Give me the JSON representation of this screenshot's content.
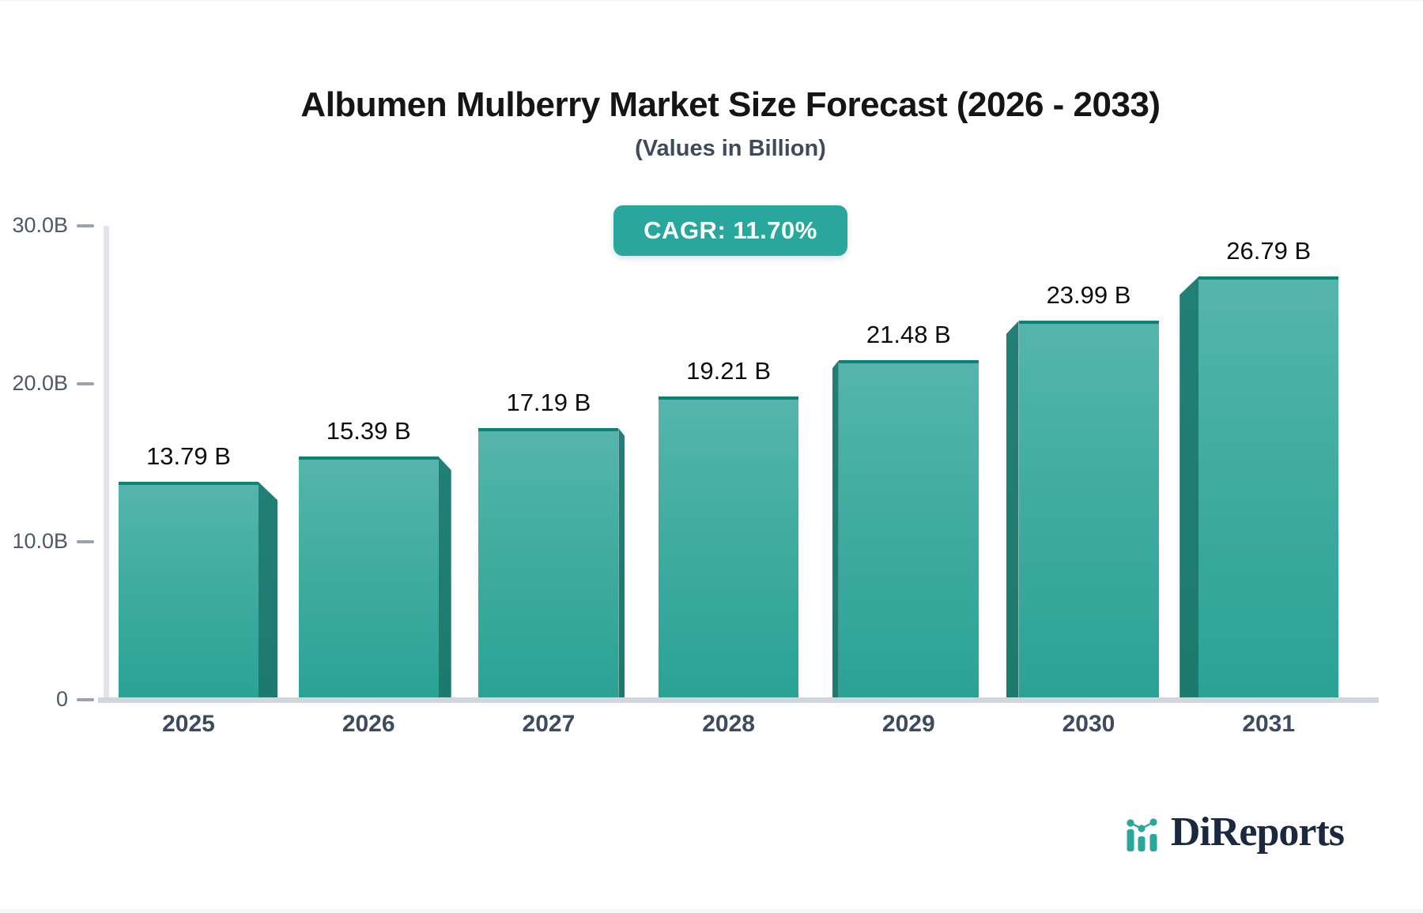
{
  "header": {
    "badge": "CAGR: 11.70%"
  },
  "chart_data": {
    "type": "bar",
    "title": "Albumen Mulberry Market Size Forecast (2026 - 2033)",
    "subtitle": "(Values in Billion)",
    "cagr_annotation": "CAGR: 11.70%",
    "categories": [
      "2025",
      "2026",
      "2027",
      "2028",
      "2029",
      "2030",
      "2031"
    ],
    "values": [
      13.79,
      15.39,
      17.19,
      19.21,
      21.48,
      23.99,
      26.79
    ],
    "value_labels": [
      "13.79 B",
      "15.39 B",
      "17.19 B",
      "19.21 B",
      "21.48 B",
      "23.99 B",
      "26.79 B"
    ],
    "xlabel": "",
    "ylabel": "",
    "ylim": [
      0,
      30
    ],
    "y_ticks": [
      {
        "value": 30,
        "label": "30.0B"
      },
      {
        "value": 20,
        "label": "20.0B"
      },
      {
        "value": 10,
        "label": "10.0B"
      },
      {
        "value": 0,
        "label": "0"
      }
    ],
    "grid": false,
    "legend_position": "none",
    "bar_style": "3d-extruded",
    "colors": {
      "bar_face_top": "#55b5ac",
      "bar_face_bottom": "#2ba296",
      "bar_top_edge": "#128077",
      "bar_side": "#1d7a6e",
      "axis_line": "#d2d5dc",
      "tick_dash": "#9aa2b0"
    }
  },
  "badge_colors": {
    "background": "#2aa79c",
    "text": "#ffffff"
  },
  "branding": {
    "logo_text": "DiReports",
    "logo_icon": "bar-chart-trend-icon",
    "logo_text_color": "#1b2940",
    "logo_accent_color": "#2aa79b"
  }
}
